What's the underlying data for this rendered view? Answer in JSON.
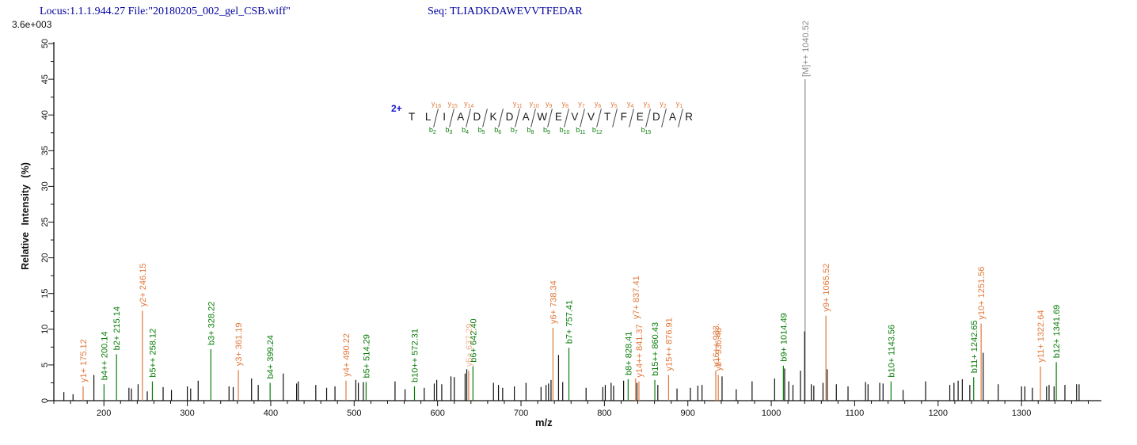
{
  "header": {
    "locus_file": "Locus:1.1.1.944.27 File:\"20180205_002_gel_CSB.wiff\"",
    "seq_prefix": "Seq: ",
    "sequence": "TLIADKDAWEVVTFEDAR",
    "max_intensity": "3.6e+003"
  },
  "peptide": {
    "charge": "2+",
    "residues": [
      {
        "letter": "T"
      },
      {
        "letter": "L"
      },
      {
        "letter": "I",
        "y": "y16",
        "b": "b2"
      },
      {
        "letter": "A",
        "y": "y15",
        "b": "b3"
      },
      {
        "letter": "D",
        "y": "y14",
        "b": "b4"
      },
      {
        "letter": "K",
        "b": "b5"
      },
      {
        "letter": "D",
        "b": "b6"
      },
      {
        "letter": "A",
        "y": "y11",
        "b": "b7"
      },
      {
        "letter": "W",
        "y": "y10",
        "b": "b8"
      },
      {
        "letter": "E",
        "y": "y9",
        "b": "b9"
      },
      {
        "letter": "V",
        "y": "y8",
        "b": "b10"
      },
      {
        "letter": "V",
        "y": "y7",
        "b": "b11"
      },
      {
        "letter": "T",
        "y": "y6",
        "b": "b12"
      },
      {
        "letter": "F",
        "y": "y5"
      },
      {
        "letter": "E",
        "y": "y4"
      },
      {
        "letter": "D",
        "y": "y3",
        "b": "b15"
      },
      {
        "letter": "A",
        "y": "y2"
      },
      {
        "letter": "R",
        "y": "y1"
      }
    ]
  },
  "colors": {
    "y_ion": "#e0793c",
    "b_ion": "#0a7d0a",
    "precursor": "#8a8a8a",
    "unlabeled_peak": "#101010",
    "header_text": "#0000a0",
    "axis": "#111111"
  },
  "chart_data": {
    "type": "bar",
    "title": "",
    "xlabel": "m/z",
    "ylabel": "Relative Intensity (%)",
    "xlim": [
      140,
      1390
    ],
    "ylim": [
      0,
      50
    ],
    "x_ticks": [
      200,
      300,
      400,
      500,
      600,
      700,
      800,
      900,
      1000,
      1100,
      1200,
      1300
    ],
    "x_minor_step": 20,
    "y_ticks": [
      0,
      5,
      10,
      15,
      20,
      25,
      30,
      35,
      40,
      45,
      50
    ],
    "y_minor_step": 2.5,
    "grid": false,
    "legend": false,
    "base_peak_intensity": "3.6e+003",
    "precursor": {
      "label": "[M]++ 1040.52",
      "mz": 1040.52
    },
    "series": [
      {
        "name": "y-ions",
        "color": "#e0793c",
        "points": [
          {
            "label": "y1+ 175.12",
            "mz": 175.12,
            "intensity": 2.0
          },
          {
            "label": "y2+ 246.15",
            "mz": 246.15,
            "intensity": 12.6
          },
          {
            "label": "y3+ 361.19",
            "mz": 361.19,
            "intensity": 4.3
          },
          {
            "label": "y4+ 490.22",
            "mz": 490.22,
            "intensity": 2.8
          },
          {
            "label": "y5+ 637.29",
            "mz": 637.29,
            "intensity": 4.2,
            "label_opacity": 0.55
          },
          {
            "label": "y6+ 738.34",
            "mz": 738.34,
            "intensity": 10.2
          },
          {
            "label": "y7+ 837.41",
            "mz": 837.41,
            "intensity": 3.1,
            "label_raise": 70
          },
          {
            "label": "y14++ 841.37",
            "mz": 841.37,
            "intensity": 2.7
          },
          {
            "label": "y15++ 876.91",
            "mz": 876.91,
            "intensity": 3.6
          },
          {
            "label": "y16++ 933.",
            "mz": 933.46,
            "intensity": 4.2
          },
          {
            "label": "y8+ 936.48",
            "mz": 936.48,
            "intensity": 3.6
          },
          {
            "label": "y9+ 1065.52",
            "mz": 1065.52,
            "intensity": 11.9
          },
          {
            "label": "y10+ 1251.56",
            "mz": 1251.56,
            "intensity": 10.8
          },
          {
            "label": "y11+ 1322.64",
            "mz": 1322.64,
            "intensity": 4.8
          }
        ]
      },
      {
        "name": "b-ions",
        "color": "#0a7d0a",
        "points": [
          {
            "label": "b4++ 200.14",
            "mz": 200.14,
            "intensity": 2.3
          },
          {
            "label": "b2+ 215.14",
            "mz": 215.14,
            "intensity": 6.5
          },
          {
            "label": "b5++ 258.12",
            "mz": 258.12,
            "intensity": 2.7
          },
          {
            "label": "b3+ 328.22",
            "mz": 328.22,
            "intensity": 7.2
          },
          {
            "label": "b4+ 399.24",
            "mz": 399.24,
            "intensity": 2.5
          },
          {
            "label": "b5+ 514.29",
            "mz": 514.29,
            "intensity": 2.6
          },
          {
            "label": "b10++ 572.31",
            "mz": 572.31,
            "intensity": 2.0
          },
          {
            "label": "b6+ 642.40",
            "mz": 642.4,
            "intensity": 4.8
          },
          {
            "label": "b7+ 757.41",
            "mz": 757.41,
            "intensity": 7.4
          },
          {
            "label": "b8+ 828.41",
            "mz": 828.41,
            "intensity": 3.0
          },
          {
            "label": "b15++ 860.43",
            "mz": 860.43,
            "intensity": 2.9
          },
          {
            "label": "b9+ 1014.49",
            "mz": 1014.49,
            "intensity": 4.9
          },
          {
            "label": "b10+ 1143.56",
            "mz": 1143.56,
            "intensity": 2.7
          },
          {
            "label": "b11+ 1242.65",
            "mz": 1242.65,
            "intensity": 3.3
          },
          {
            "label": "b12+ 1341.69",
            "mz": 1341.69,
            "intensity": 5.4
          }
        ]
      },
      {
        "name": "unlabeled",
        "color": "#101010",
        "points": [
          {
            "mz": 152,
            "intensity": 1.2
          },
          {
            "mz": 163,
            "intensity": 0.9
          },
          {
            "mz": 188,
            "intensity": 3.6
          },
          {
            "mz": 230,
            "intensity": 1.8
          },
          {
            "mz": 233,
            "intensity": 1.7
          },
          {
            "mz": 241,
            "intensity": 2.3
          },
          {
            "mz": 252,
            "intensity": 1.3
          },
          {
            "mz": 271,
            "intensity": 1.9
          },
          {
            "mz": 281,
            "intensity": 1.5
          },
          {
            "mz": 300,
            "intensity": 2.0
          },
          {
            "mz": 304,
            "intensity": 1.7
          },
          {
            "mz": 313,
            "intensity": 2.8
          },
          {
            "mz": 350,
            "intensity": 2.0
          },
          {
            "mz": 355,
            "intensity": 1.9
          },
          {
            "mz": 377,
            "intensity": 3.1
          },
          {
            "mz": 385,
            "intensity": 2.2
          },
          {
            "mz": 415,
            "intensity": 3.8
          },
          {
            "mz": 431,
            "intensity": 2.4
          },
          {
            "mz": 433,
            "intensity": 2.7
          },
          {
            "mz": 454,
            "intensity": 2.2
          },
          {
            "mz": 467,
            "intensity": 1.8
          },
          {
            "mz": 477,
            "intensity": 2.0
          },
          {
            "mz": 502,
            "intensity": 2.9
          },
          {
            "mz": 505,
            "intensity": 2.5
          },
          {
            "mz": 511,
            "intensity": 2.6
          },
          {
            "mz": 549,
            "intensity": 2.7
          },
          {
            "mz": 561,
            "intensity": 1.6
          },
          {
            "mz": 584,
            "intensity": 1.8
          },
          {
            "mz": 596,
            "intensity": 2.4
          },
          {
            "mz": 599,
            "intensity": 2.9
          },
          {
            "mz": 605,
            "intensity": 2.3
          },
          {
            "mz": 616,
            "intensity": 3.4
          },
          {
            "mz": 620,
            "intensity": 3.3
          },
          {
            "mz": 633,
            "intensity": 3.8
          },
          {
            "mz": 635,
            "intensity": 4.4
          },
          {
            "mz": 667,
            "intensity": 2.5
          },
          {
            "mz": 673,
            "intensity": 2.2
          },
          {
            "mz": 678,
            "intensity": 1.8
          },
          {
            "mz": 692,
            "intensity": 2.0
          },
          {
            "mz": 706,
            "intensity": 2.5
          },
          {
            "mz": 724,
            "intensity": 1.9
          },
          {
            "mz": 730,
            "intensity": 2.2
          },
          {
            "mz": 733,
            "intensity": 2.4
          },
          {
            "mz": 736,
            "intensity": 2.9
          },
          {
            "mz": 745,
            "intensity": 6.4
          },
          {
            "mz": 750,
            "intensity": 2.6
          },
          {
            "mz": 778,
            "intensity": 1.8
          },
          {
            "mz": 798,
            "intensity": 1.9
          },
          {
            "mz": 801,
            "intensity": 2.2
          },
          {
            "mz": 808,
            "intensity": 2.5
          },
          {
            "mz": 811,
            "intensity": 2.1
          },
          {
            "mz": 823,
            "intensity": 2.8
          },
          {
            "mz": 839,
            "intensity": 2.5
          },
          {
            "mz": 864,
            "intensity": 2.2
          },
          {
            "mz": 887,
            "intensity": 1.7
          },
          {
            "mz": 903,
            "intensity": 1.8
          },
          {
            "mz": 912,
            "intensity": 2.1
          },
          {
            "mz": 917,
            "intensity": 2.2
          },
          {
            "mz": 941,
            "intensity": 3.4
          },
          {
            "mz": 958,
            "intensity": 1.6
          },
          {
            "mz": 977,
            "intensity": 2.7
          },
          {
            "mz": 1004,
            "intensity": 3.1
          },
          {
            "mz": 1016,
            "intensity": 4.5
          },
          {
            "mz": 1021,
            "intensity": 2.7
          },
          {
            "mz": 1026,
            "intensity": 2.2
          },
          {
            "mz": 1035,
            "intensity": 4.2
          },
          {
            "mz": 1040,
            "intensity": 9.7
          },
          {
            "mz": 1048,
            "intensity": 2.3
          },
          {
            "mz": 1051,
            "intensity": 2.1
          },
          {
            "mz": 1062,
            "intensity": 2.5
          },
          {
            "mz": 1067,
            "intensity": 4.4
          },
          {
            "mz": 1078,
            "intensity": 2.3
          },
          {
            "mz": 1092,
            "intensity": 2.0
          },
          {
            "mz": 1113,
            "intensity": 2.6
          },
          {
            "mz": 1116,
            "intensity": 2.3
          },
          {
            "mz": 1130,
            "intensity": 2.5
          },
          {
            "mz": 1134,
            "intensity": 2.4
          },
          {
            "mz": 1158,
            "intensity": 1.5
          },
          {
            "mz": 1185,
            "intensity": 2.7
          },
          {
            "mz": 1214,
            "intensity": 2.2
          },
          {
            "mz": 1219,
            "intensity": 2.5
          },
          {
            "mz": 1224,
            "intensity": 2.8
          },
          {
            "mz": 1229,
            "intensity": 3.0
          },
          {
            "mz": 1238,
            "intensity": 2.2
          },
          {
            "mz": 1254,
            "intensity": 6.7
          },
          {
            "mz": 1272,
            "intensity": 2.3
          },
          {
            "mz": 1300,
            "intensity": 2.0
          },
          {
            "mz": 1304,
            "intensity": 2.0
          },
          {
            "mz": 1313,
            "intensity": 1.8
          },
          {
            "mz": 1330,
            "intensity": 2.0
          },
          {
            "mz": 1333,
            "intensity": 2.2
          },
          {
            "mz": 1339,
            "intensity": 2.0
          },
          {
            "mz": 1352,
            "intensity": 2.2
          },
          {
            "mz": 1366,
            "intensity": 2.3
          },
          {
            "mz": 1369,
            "intensity": 2.3
          }
        ]
      }
    ]
  }
}
